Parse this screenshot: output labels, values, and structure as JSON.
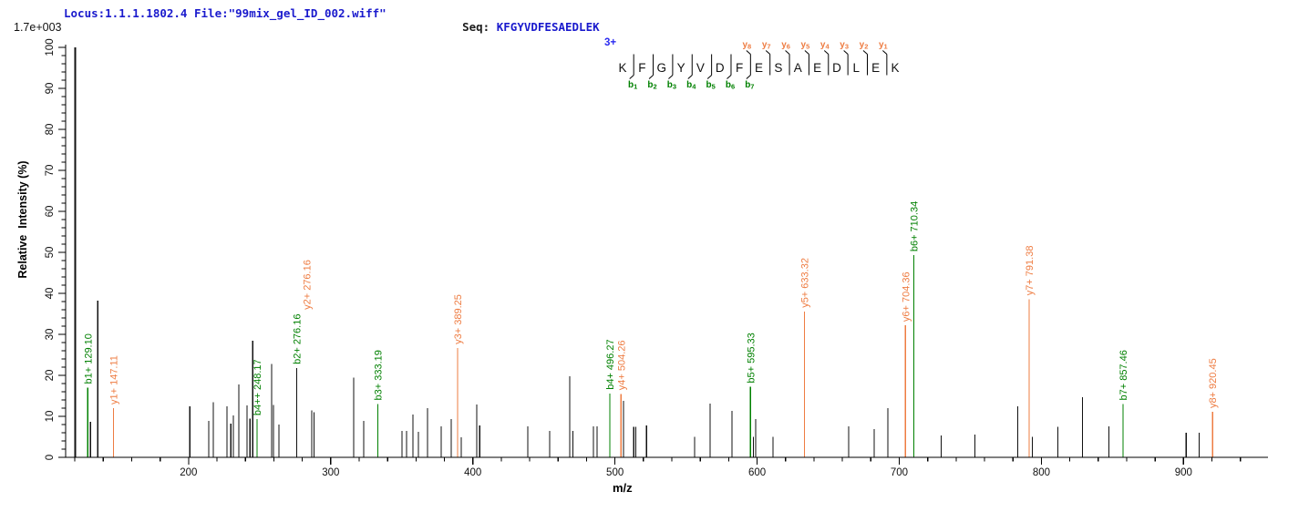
{
  "header": {
    "locus_file": "Locus:1.1.1.1802.4 File:\"99mix_gel_ID_002.wiff\"",
    "seq_label": "Seq: ",
    "seq_value": "KFGYVDFESAEDLEK"
  },
  "annotation": {
    "charge": "3+",
    "residues": [
      "K",
      "F",
      "G",
      "Y",
      "V",
      "D",
      "F",
      "E",
      "S",
      "A",
      "E",
      "D",
      "L",
      "E",
      "K"
    ],
    "b_ions": [
      "b1",
      "b2",
      "b3",
      "b4",
      "b5",
      "b6",
      "b7"
    ],
    "y_ions": [
      "y8",
      "y7",
      "y6",
      "y5",
      "y4",
      "y3",
      "y2",
      "y1"
    ]
  },
  "colors": {
    "b_ion": "#008000",
    "y_ion": "#ee7c42",
    "peak": "#111111",
    "axis": "#000000",
    "header_blue": "#1a1acd",
    "charge_blue": "#2a2af0"
  },
  "chart_data": {
    "type": "bar",
    "title": "MS/MS fragmentation spectrum",
    "xlabel": "m/z",
    "ylabel": "Relative  Intensity (%)",
    "intensity_scale": "1.7e+003",
    "xlim": [
      113.5,
      957.5
    ],
    "ylim": [
      0,
      100
    ],
    "x_major_ticks": [
      200,
      300,
      400,
      500,
      600,
      700,
      800,
      900
    ],
    "x_minor_step": 20,
    "y_major_step": 10,
    "y_minor_step": 2,
    "grid": false,
    "legend": "none",
    "peaks": [
      {
        "mz": 120.1,
        "i": 100,
        "w": 2
      },
      {
        "mz": 129.1,
        "i": 17,
        "ion": "b",
        "label": "b1+ 129.10"
      },
      {
        "mz": 131.0,
        "i": 8.7
      },
      {
        "mz": 136.1,
        "i": 38.2,
        "w": 1.5
      },
      {
        "mz": 147.11,
        "i": 12,
        "ion": "y",
        "label": "y1+ 147.11"
      },
      {
        "mz": 200.9,
        "i": 12.4
      },
      {
        "mz": 214.3,
        "i": 8.9
      },
      {
        "mz": 217.5,
        "i": 13.5
      },
      {
        "mz": 227.1,
        "i": 12.4
      },
      {
        "mz": 229.7,
        "i": 8.2
      },
      {
        "mz": 231.6,
        "i": 10.2
      },
      {
        "mz": 235.4,
        "i": 17.8
      },
      {
        "mz": 241.2,
        "i": 12.7
      },
      {
        "mz": 243.2,
        "i": 9.5
      },
      {
        "mz": 245.2,
        "i": 28.4,
        "w": 1.4
      },
      {
        "mz": 248.17,
        "i": 9.3,
        "ion": "b",
        "label": "b4++ 248.17"
      },
      {
        "mz": 258.5,
        "i": 22.8
      },
      {
        "mz": 259.8,
        "i": 12.8
      },
      {
        "mz": 263.6,
        "i": 8.0
      },
      {
        "mz": 276.16,
        "i": 21.8,
        "labels": [
          {
            "text": "b2+ 276.16",
            "ion": "b"
          },
          {
            "text": "y2+ 276.16",
            "ion": "y",
            "dx": 11,
            "dy": -60
          }
        ]
      },
      {
        "mz": 286.7,
        "i": 11.5
      },
      {
        "mz": 288.3,
        "i": 11.0
      },
      {
        "mz": 316.2,
        "i": 19.4
      },
      {
        "mz": 323.3,
        "i": 8.9
      },
      {
        "mz": 333.19,
        "i": 13,
        "ion": "b",
        "label": "b3+ 333.19"
      },
      {
        "mz": 350.1,
        "i": 6.4
      },
      {
        "mz": 353.4,
        "i": 6.4
      },
      {
        "mz": 357.9,
        "i": 10.4
      },
      {
        "mz": 361.7,
        "i": 6.2
      },
      {
        "mz": 368.1,
        "i": 12.0
      },
      {
        "mz": 377.7,
        "i": 7.6
      },
      {
        "mz": 384.8,
        "i": 9.3
      },
      {
        "mz": 389.25,
        "i": 26.7,
        "ion": "y",
        "label": "y3+ 389.25"
      },
      {
        "mz": 391.8,
        "i": 4.9
      },
      {
        "mz": 402.7,
        "i": 12.9
      },
      {
        "mz": 404.8,
        "i": 7.8
      },
      {
        "mz": 438.6,
        "i": 7.6
      },
      {
        "mz": 454.0,
        "i": 6.4
      },
      {
        "mz": 468.1,
        "i": 19.8
      },
      {
        "mz": 470.4,
        "i": 6.5
      },
      {
        "mz": 484.8,
        "i": 7.6
      },
      {
        "mz": 487.3,
        "i": 7.6
      },
      {
        "mz": 496.27,
        "i": 15.6,
        "ion": "b",
        "label": "b4+ 496.27"
      },
      {
        "mz": 504.26,
        "i": 15.5,
        "ion": "y",
        "label": "y4+ 504.26"
      },
      {
        "mz": 506.1,
        "i": 13.8
      },
      {
        "mz": 513.2,
        "i": 7.4
      },
      {
        "mz": 514.7,
        "i": 7.4
      },
      {
        "mz": 522.2,
        "i": 7.8
      },
      {
        "mz": 556.1,
        "i": 5.0
      },
      {
        "mz": 566.9,
        "i": 13.1
      },
      {
        "mz": 582.3,
        "i": 11.3
      },
      {
        "mz": 595.33,
        "i": 17.2,
        "ion": "b",
        "label": "b5+ 595.33"
      },
      {
        "mz": 597.3,
        "i": 5.0
      },
      {
        "mz": 598.9,
        "i": 9.3
      },
      {
        "mz": 611.2,
        "i": 5.0
      },
      {
        "mz": 633.32,
        "i": 35.6,
        "ion": "y",
        "label": "y5+ 633.32"
      },
      {
        "mz": 664.3,
        "i": 7.6
      },
      {
        "mz": 682.3,
        "i": 6.9
      },
      {
        "mz": 691.9,
        "i": 12.0
      },
      {
        "mz": 704.36,
        "i": 32.2,
        "ion": "y",
        "label": "y6+ 704.36"
      },
      {
        "mz": 710.34,
        "i": 49.3,
        "ion": "b",
        "label": "b6+ 710.34"
      },
      {
        "mz": 729.6,
        "i": 5.3
      },
      {
        "mz": 753.3,
        "i": 5.6
      },
      {
        "mz": 783.4,
        "i": 12.4
      },
      {
        "mz": 791.38,
        "i": 38.6,
        "ion": "y",
        "label": "y7+ 791.38"
      },
      {
        "mz": 793.6,
        "i": 5.0
      },
      {
        "mz": 811.6,
        "i": 7.5
      },
      {
        "mz": 828.9,
        "i": 14.7
      },
      {
        "mz": 847.5,
        "i": 7.6
      },
      {
        "mz": 857.46,
        "i": 13.0,
        "ion": "b",
        "label": "b7+ 857.46"
      },
      {
        "mz": 901.9,
        "i": 6.0
      },
      {
        "mz": 911.0,
        "i": 6.0
      },
      {
        "mz": 920.45,
        "i": 11.1,
        "ion": "y",
        "label": "y8+ 920.45"
      }
    ]
  }
}
